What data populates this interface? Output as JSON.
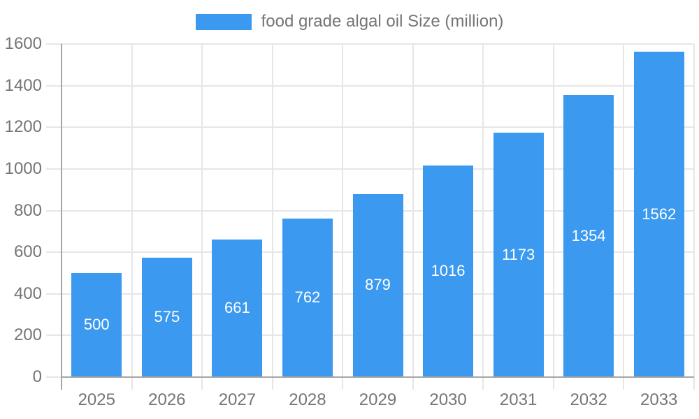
{
  "legend": {
    "label": "food grade algal oil Size (million)",
    "swatch_color": "#3B99EF"
  },
  "chart_data": {
    "type": "bar",
    "title": "food grade algal oil Size (million)",
    "categories": [
      "2025",
      "2026",
      "2027",
      "2028",
      "2029",
      "2030",
      "2031",
      "2032",
      "2033"
    ],
    "values": [
      500,
      575,
      661,
      762,
      879,
      1016,
      1173,
      1354,
      1562
    ],
    "series": [
      {
        "name": "food grade algal oil Size (million)",
        "values": [
          500,
          575,
          661,
          762,
          879,
          1016,
          1173,
          1354,
          1562
        ]
      }
    ],
    "xlabel": "",
    "ylabel": "",
    "ylim": [
      0,
      1600
    ],
    "ytick_interval": 200,
    "yticks": [
      0,
      200,
      400,
      600,
      800,
      1000,
      1200,
      1400,
      1600
    ],
    "grid": true,
    "legend_position": "top",
    "bar_color": "#3B99EF",
    "bar_label_color": "#ffffff",
    "axis_text_color": "#757575",
    "axis_line_color": "#a6a6a6",
    "gridline_color": "#e6e6e6",
    "background_color": "#ffffff"
  }
}
